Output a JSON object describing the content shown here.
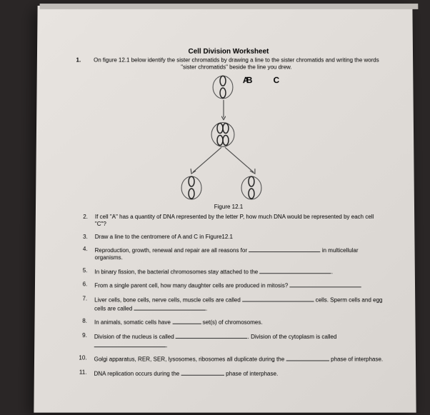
{
  "title": "Cell Division Worksheet",
  "q1": {
    "num": "1.",
    "text": "On figure 12.1 below identify the sister chromatids by drawing a line to the sister chromatids and writing the words \"sister chromatids\" beside the line you drew."
  },
  "labels": {
    "A": "A",
    "B": "B",
    "C": "C"
  },
  "figureCaption": "Figure 12.1",
  "questions": [
    {
      "num": "2.",
      "parts": [
        "If cell \"A\" has a quantity of DNA represented by the letter P, how much DNA would be represented by each cell \"C\"?"
      ]
    },
    {
      "num": "3.",
      "parts": [
        "Draw a line to the centromere of A and C in Figure12.1"
      ]
    },
    {
      "num": "4.",
      "parts": [
        "Reproduction, growth, renewal and repair are all reasons for ",
        "__long",
        " in multicellular organisms."
      ]
    },
    {
      "num": "5.",
      "parts": [
        "In binary fission, the bacterial chromosomes stay attached to the ",
        "__long",
        "."
      ]
    },
    {
      "num": "6.",
      "parts": [
        "From a single parent cell, how many daughter cells are produced in mitosis? ",
        "__long"
      ]
    },
    {
      "num": "7.",
      "parts": [
        "Liver cells, bone cells, nerve cells, muscle cells are called ",
        "__long",
        " cells. Sperm cells and egg cells are called ",
        "__long",
        "."
      ]
    },
    {
      "num": "8.",
      "parts": [
        "In animals, somatic cells have ",
        "__short",
        " set(s) of chromosomes."
      ]
    },
    {
      "num": "9.",
      "parts": [
        "Division of the nucleus is called ",
        "__long",
        ". Division of the cytoplasm is called ",
        "__long",
        "."
      ]
    },
    {
      "num": "10.",
      "parts": [
        "Golgi apparatus, RER, SER, lysosomes, ribosomes all duplicate during the ",
        "__",
        " phase of interphase."
      ]
    },
    {
      "num": "11.",
      "parts": [
        "DNA replication occurs during the ",
        "__",
        " phase of interphase."
      ]
    }
  ],
  "colors": {
    "pageBg": "#e0dcd8",
    "text": "#1a1a1a",
    "chromoStroke": "#2a2a2a"
  }
}
